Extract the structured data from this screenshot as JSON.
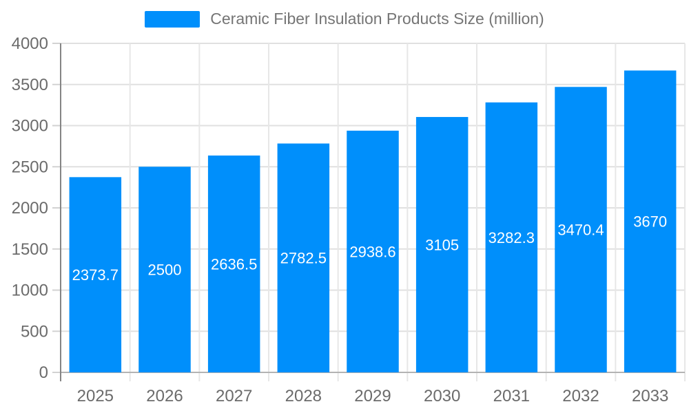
{
  "chart_data": {
    "type": "bar",
    "title": "",
    "legend": {
      "label": "Ceramic Fiber Insulation Products Size (million)",
      "position": "top"
    },
    "categories": [
      "2025",
      "2026",
      "2027",
      "2028",
      "2029",
      "2030",
      "2031",
      "2032",
      "2033"
    ],
    "series": [
      {
        "name": "Ceramic Fiber Insulation Products Size (million)",
        "values": [
          2373.7,
          2500,
          2636.5,
          2782.5,
          2938.6,
          3105,
          3282.3,
          3470.4,
          3670
        ]
      }
    ],
    "data_labels": [
      "2373.7",
      "2500",
      "2636.5",
      "2782.5",
      "2938.6",
      "3105",
      "3282.3",
      "3470.4",
      "3670"
    ],
    "xlabel": "",
    "ylabel": "",
    "ylim": [
      0,
      4000
    ],
    "ytick_step": 500,
    "yticks": [
      "0",
      "500",
      "1000",
      "1500",
      "2000",
      "2500",
      "3000",
      "3500",
      "4000"
    ],
    "grid": true,
    "bar_width_ratio": 0.75,
    "colors": {
      "bar": "#008FFB",
      "data_label": "#ffffff",
      "axis_label": "#6b6b6b",
      "legend_text": "#757575",
      "grid_h": "#e0e0e0",
      "grid_v": "#e7e7e7",
      "y_axis_line": "#848484",
      "x_axis_line": "#b3b3b3",
      "y_tick": "#d2d2d2",
      "background": "#ffffff"
    }
  }
}
